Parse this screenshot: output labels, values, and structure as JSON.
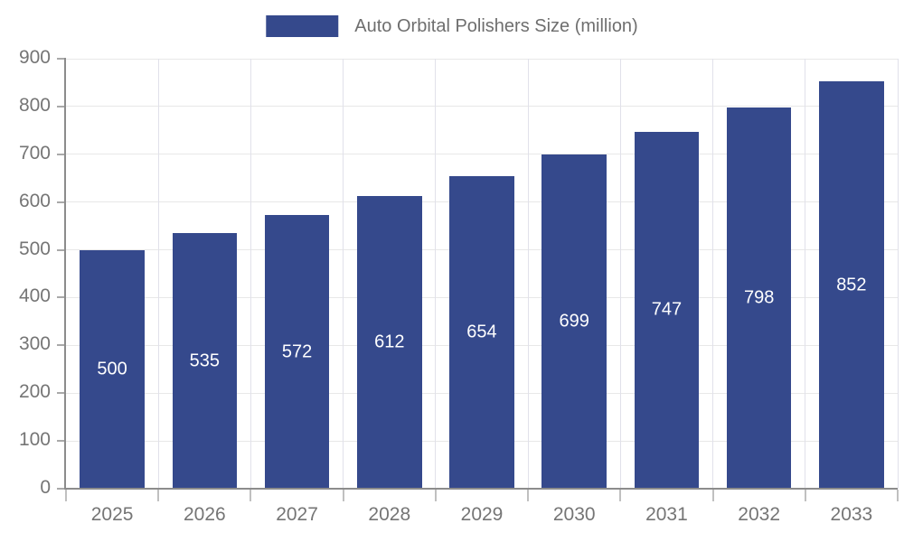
{
  "chart_data": {
    "type": "bar",
    "title": "Auto Orbital Polishers Size (million)",
    "categories": [
      "2025",
      "2026",
      "2027",
      "2028",
      "2029",
      "2030",
      "2031",
      "2032",
      "2033"
    ],
    "values": [
      500,
      535,
      572,
      612,
      654,
      699,
      747,
      798,
      852
    ],
    "value_labels": [
      "500",
      "535",
      "572",
      "612",
      "654",
      "699",
      "747",
      "798",
      "852"
    ],
    "yticks": [
      0,
      100,
      200,
      300,
      400,
      500,
      600,
      700,
      800,
      900
    ],
    "ylim": [
      0,
      900
    ],
    "xlabel": "",
    "ylabel": "",
    "legend_position": "top-center",
    "grid": "horizontal lines every 100; vertical lines at category boundaries",
    "colors": {
      "bar": "#35498C",
      "value_label": "#FFFFFF",
      "tick_label": "#757575",
      "legend_text": "#6E6E6E",
      "axis": "#8C8C8C",
      "h_gridline": "#E8E8E8",
      "v_gridline": "#E1E1EA",
      "background": "#FFFFFF"
    }
  }
}
